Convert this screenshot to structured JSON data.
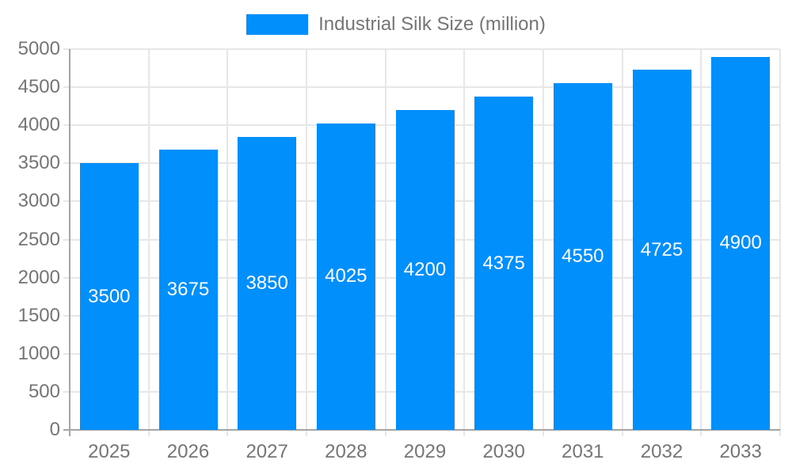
{
  "legend": {
    "label": "Industrial Silk Size (million)"
  },
  "chart_data": {
    "type": "bar",
    "title": "Industrial Silk Size (million)",
    "categories": [
      "2025",
      "2026",
      "2027",
      "2028",
      "2029",
      "2030",
      "2031",
      "2032",
      "2033"
    ],
    "series": [
      {
        "name": "Industrial Silk Size (million)",
        "values": [
          3500,
          3675,
          3850,
          4025,
          4200,
          4375,
          4550,
          4725,
          4900
        ]
      }
    ],
    "value_labels": [
      "3500",
      "3675",
      "3850",
      "4025",
      "4200",
      "4375",
      "4550",
      "4725",
      "4900"
    ],
    "xlabel": "",
    "ylabel": "",
    "ylim": [
      0,
      5000
    ],
    "yticks": [
      0,
      500,
      1000,
      1500,
      2000,
      2500,
      3000,
      3500,
      4000,
      4500,
      5000
    ],
    "grid": true,
    "legend_position": "top",
    "value_labels_position": "inside-center",
    "colors": {
      "bar": "#008FFB",
      "axis_line": "#a5a5a5",
      "gridline": "#e7e7e7",
      "tick_text": "#757575",
      "value_label_text": "#ffffff",
      "background": "#ffffff"
    }
  }
}
